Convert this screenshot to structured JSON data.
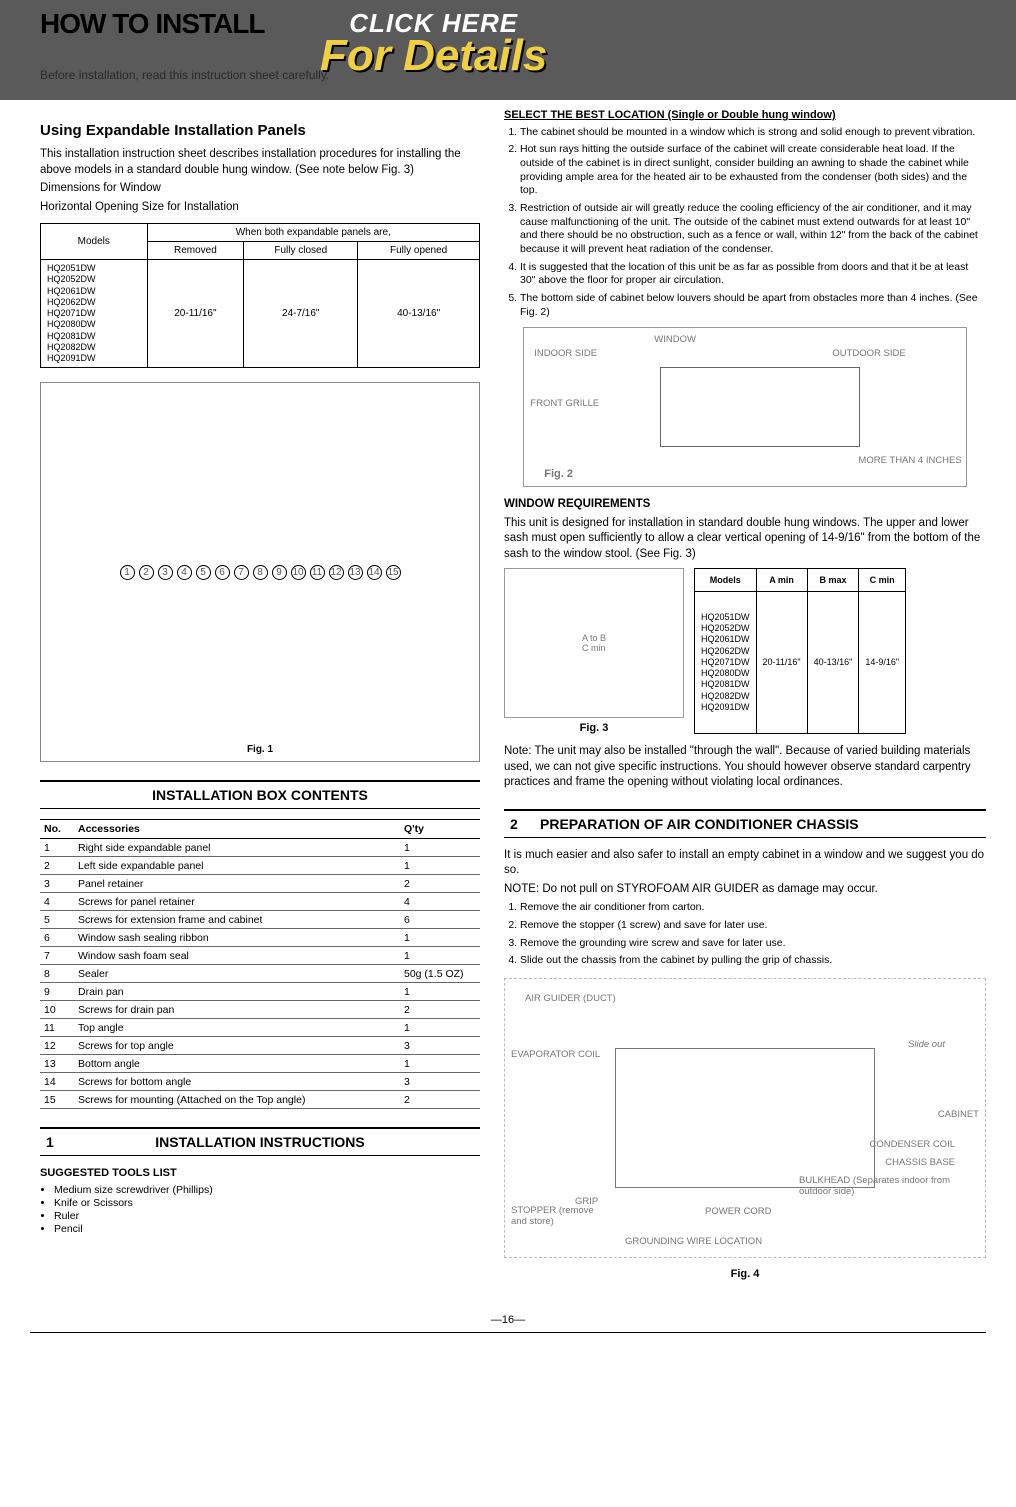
{
  "banner": {
    "title": "HOW TO INSTALL",
    "subtitle": "Before installation, read this instruction sheet carefully.",
    "overlay_line1": "CLICK HERE",
    "overlay_line2": "For Details"
  },
  "left": {
    "heading_panels": "Using Expandable Installation Panels",
    "intro1": "This installation instruction sheet describes installation procedures for installing the above models in a standard double hung window. (See note below Fig. 3)",
    "intro2": "Dimensions for Window",
    "intro3": "Horizontal Opening Size for Installation",
    "panel_table": {
      "super_header": "When both expandable panels are,",
      "headers": [
        "Models",
        "Removed",
        "Fully closed",
        "Fully opened"
      ],
      "models": [
        "HQ2051DW",
        "HQ2052DW",
        "HQ2061DW",
        "HQ2062DW",
        "HQ2071DW",
        "HQ2080DW",
        "HQ2081DW",
        "HQ2082DW",
        "HQ2091DW"
      ],
      "removed": "20-11/16\"",
      "fully_closed": "24-7/16\"",
      "fully_opened": "40-13/16\""
    },
    "fig1_caption": "Fig. 1",
    "fig1_numbers": [
      "1",
      "2",
      "3",
      "4",
      "5",
      "6",
      "7",
      "8",
      "9",
      "10",
      "11",
      "12",
      "13",
      "14",
      "15"
    ],
    "box_contents_title": "INSTALLATION BOX CONTENTS",
    "contents_headers": [
      "No.",
      "Accessories",
      "Q'ty"
    ],
    "contents_rows": [
      [
        "1",
        "Right side expandable panel",
        "1"
      ],
      [
        "2",
        "Left side expandable panel",
        "1"
      ],
      [
        "3",
        "Panel retainer",
        "2"
      ],
      [
        "4",
        "Screws for panel retainer",
        "4"
      ],
      [
        "5",
        "Screws for extension frame and cabinet",
        "6"
      ],
      [
        "6",
        "Window sash sealing ribbon",
        "1"
      ],
      [
        "7",
        "Window sash foam seal",
        "1"
      ],
      [
        "8",
        "Sealer",
        "50g (1.5 OZ)"
      ],
      [
        "9",
        "Drain pan",
        "1"
      ],
      [
        "10",
        "Screws for drain pan",
        "2"
      ],
      [
        "11",
        "Top angle",
        "1"
      ],
      [
        "12",
        "Screws for top angle",
        "3"
      ],
      [
        "13",
        "Bottom angle",
        "1"
      ],
      [
        "14",
        "Screws for bottom angle",
        "3"
      ],
      [
        "15",
        "Screws for mounting (Attached on the Top angle)",
        "2"
      ]
    ],
    "instructions_title": "INSTALLATION INSTRUCTIONS",
    "instructions_num": "1",
    "tools_heading": "SUGGESTED TOOLS LIST",
    "tools": [
      "Medium size screwdriver (Phillips)",
      "Knife or Scissors",
      "Ruler",
      "Pencil"
    ]
  },
  "right": {
    "select_heading": "SELECT THE BEST LOCATION (Single or Double hung window)",
    "location_items": [
      "The cabinet should be mounted in a window which is strong and solid enough to prevent vibration.",
      "Hot sun rays hitting the outside surface of the cabinet will create considerable heat load. If the outside of the cabinet is in direct sunlight, consider building an awning to shade the cabinet while providing ample area for the heated air to be exhausted from the condenser (both sides) and the top.",
      "Restriction of outside air will greatly reduce the cooling efficiency of the air conditioner, and it may cause malfunctioning of the unit. The outside of the cabinet must extend outwards for at least 10\" and there should be no obstruction, such as a fence or wall, within 12\" from the back of the cabinet because it will prevent heat radiation of the condenser.",
      "It is suggested that the location of this unit be as far as possible from doors and that it be at least 30\" above the floor for proper air circulation.",
      "The bottom side of cabinet below louvers should be apart from obstacles more than 4 inches. (See Fig. 2)"
    ],
    "fig2_labels": {
      "indoor": "INDOOR SIDE",
      "outdoor": "OUTDOOR SIDE",
      "window": "WINDOW",
      "front_grille": "FRONT GRILLE",
      "more_than": "MORE THAN 4 INCHES"
    },
    "fig2_caption": "Fig. 2",
    "window_req_heading": "WINDOW REQUIREMENTS",
    "window_req_text": "This unit is designed for installation in standard double hung windows. The upper and lower sash must open sufficiently to allow a clear vertical opening of 14-9/16\" from the bottom of the sash to the window stool. (See Fig. 3)",
    "req_table": {
      "headers": [
        "Models",
        "A min",
        "B max",
        "C min"
      ],
      "models": [
        "HQ2051DW",
        "HQ2052DW",
        "HQ2061DW",
        "HQ2062DW",
        "HQ2071DW",
        "HQ2080DW",
        "HQ2081DW",
        "HQ2082DW",
        "HQ2091DW"
      ],
      "a_min": "20-11/16\"",
      "b_max": "40-13/16\"",
      "c_min": "14-9/16\""
    },
    "fig3_labels": {
      "ab": "A to B",
      "c": "C min"
    },
    "fig3_caption": "Fig. 3",
    "note_text": "Note: The unit may also be installed \"through the wall\". Because of varied building materials used, we can not give specific instructions. You should however observe standard carpentry practices and frame the opening without violating local ordinances.",
    "prep_num": "2",
    "prep_title": "PREPARATION OF AIR CONDITIONER CHASSIS",
    "prep_intro": "It is much easier and also safer to install an empty cabinet in a window and we suggest you do so.",
    "prep_note": "NOTE: Do not pull on STYROFOAM AIR GUIDER as damage may occur.",
    "prep_steps": [
      "Remove the air conditioner from carton.",
      "Remove the stopper (1 screw) and save for later use.",
      "Remove the grounding wire screw and save for later use.",
      "Slide out the chassis from the cabinet by pulling the grip of chassis."
    ],
    "fig4_labels": {
      "air_guider": "AIR GUIDER (DUCT)",
      "evaporator": "EVAPORATOR COIL",
      "slide_out": "Slide out",
      "cabinet": "CABINET",
      "condenser": "CONDENSER COIL",
      "chassis_base": "CHASSIS BASE",
      "bulkhead": "BULKHEAD (Separates indoor from outdoor side)",
      "power_cord": "POWER CORD",
      "grip": "GRIP",
      "stopper": "STOPPER (remove and store)",
      "grounding": "GROUNDING WIRE LOCATION"
    },
    "fig4_caption": "Fig. 4"
  },
  "page_number": "—16—"
}
